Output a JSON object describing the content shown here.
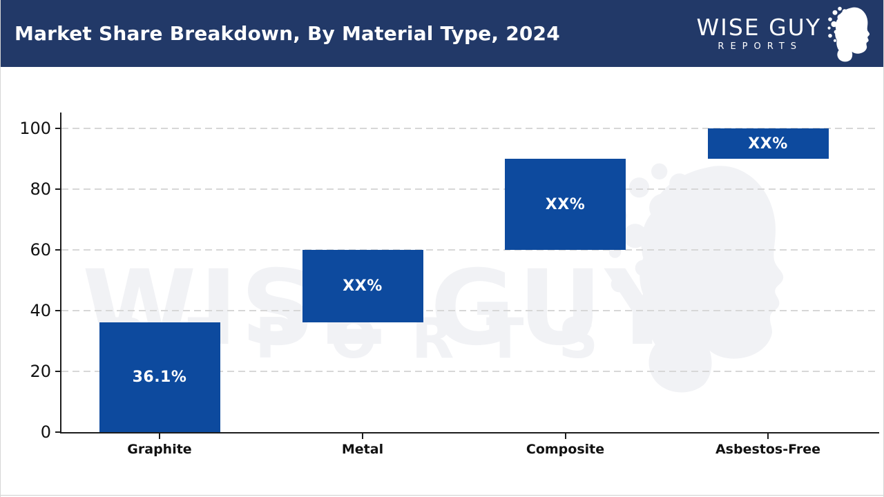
{
  "header": {
    "title": "Market Share Breakdown, By Material Type, 2024",
    "brand": {
      "name": "WISE GUY",
      "sub": "REPORTS"
    }
  },
  "watermark": {
    "name": "WISE GUY",
    "sub": "REPORTS"
  },
  "chart_data": {
    "type": "bar",
    "variant": "waterfall",
    "title": "Market Share Breakdown, By Material Type, 2024",
    "categories": [
      "Graphite",
      "Metal",
      "Composite",
      "Asbestos-Free"
    ],
    "segments": [
      {
        "category": "Graphite",
        "start": 0,
        "end": 36.1,
        "label": "36.1%"
      },
      {
        "category": "Metal",
        "start": 36.1,
        "end": 60,
        "label": "XX%"
      },
      {
        "category": "Composite",
        "start": 60,
        "end": 90,
        "label": "XX%"
      },
      {
        "category": "Asbestos-Free",
        "start": 90,
        "end": 100,
        "label": "XX%"
      }
    ],
    "yticks": [
      0,
      20,
      40,
      60,
      80,
      100
    ],
    "ylim": [
      0,
      105
    ],
    "xlabel": "",
    "ylabel": "",
    "grid": "horizontal-dashed",
    "legend": "none",
    "bar_color": "#0d4a9e",
    "bar_label_color": "#ffffff"
  },
  "colors": {
    "header_bg": "#223968",
    "accent_bar": "#0d4a9e",
    "grid": "#d7d7d7",
    "axis": "#1c1c1c",
    "watermark": "#f1f2f5",
    "page_border": "#cfcfcf"
  }
}
